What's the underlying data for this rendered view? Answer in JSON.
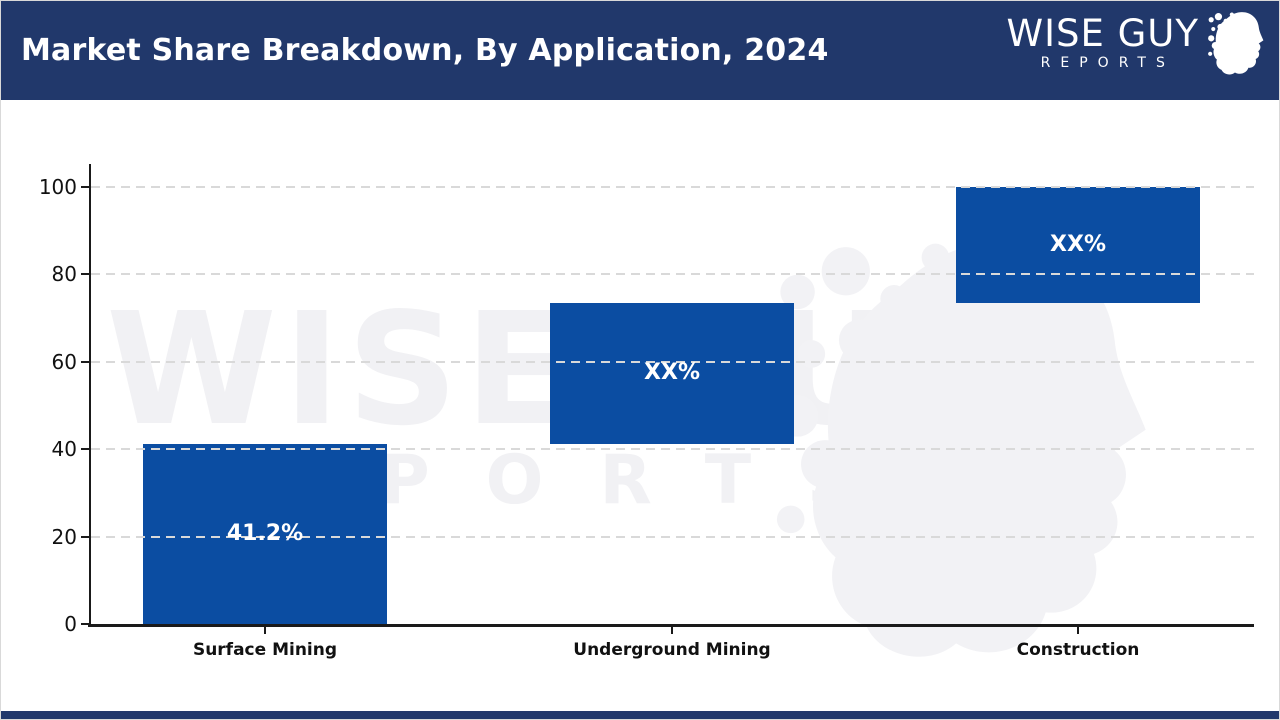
{
  "header": {
    "title": "Market Share Breakdown, By Application, 2024",
    "brand": {
      "line1": "WISE GUY",
      "line2": "REPORTS"
    }
  },
  "watermark": {
    "line1": "WISE GUY",
    "line2": "REPORTS"
  },
  "chart_data": {
    "type": "bar",
    "subtype": "floating-cumulative-segments",
    "categories": [
      "Surface Mining",
      "Underground Mining",
      "Construction"
    ],
    "segments": [
      {
        "category": "Surface Mining",
        "start": 0,
        "end": 41.2,
        "label": "41.2%"
      },
      {
        "category": "Underground Mining",
        "start": 41.2,
        "end": 73.5,
        "label": "XX%"
      },
      {
        "category": "Construction",
        "start": 73.5,
        "end": 100,
        "label": "XX%"
      }
    ],
    "yticks": [
      0,
      20,
      40,
      60,
      80,
      100
    ],
    "ylim": [
      0,
      100
    ],
    "grid": "dashed-horizontal",
    "legend": "none"
  },
  "colors": {
    "header_bg": "#21386b",
    "footer_bg": "#21386b",
    "bar": "#0b4da2",
    "bar_label": "#ffffff",
    "grid": "#d9d9d9",
    "axis": "#1a1a1a",
    "watermark": "#f1f1f4"
  }
}
